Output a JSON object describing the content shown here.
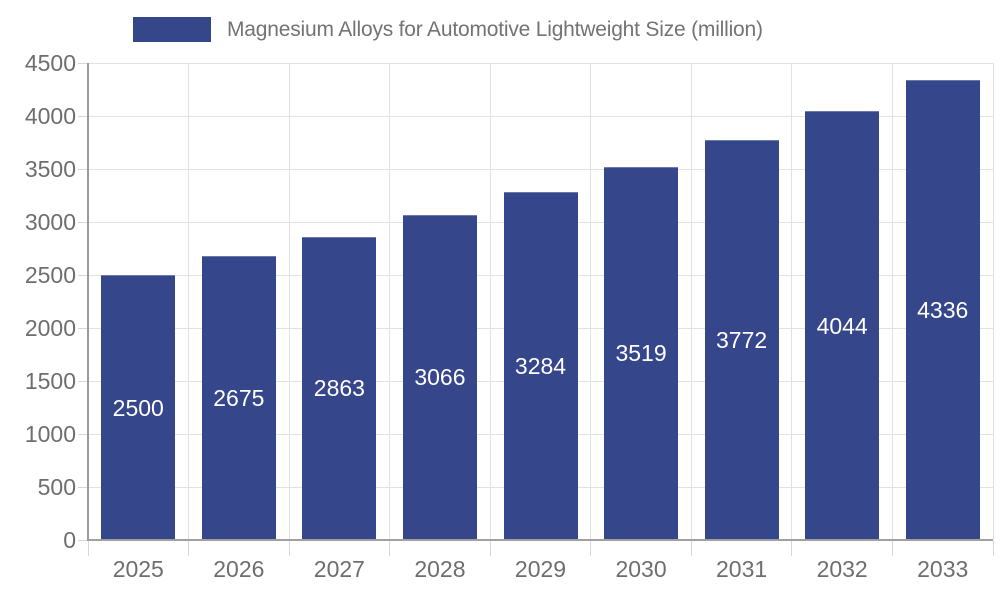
{
  "chart_data": {
    "type": "bar",
    "title": "",
    "legend": "Magnesium Alloys for Automotive Lightweight Size (million)",
    "legend_position": "top-center",
    "categories": [
      "2025",
      "2026",
      "2027",
      "2028",
      "2029",
      "2030",
      "2031",
      "2032",
      "2033"
    ],
    "values": [
      2500,
      2675,
      2863,
      3066,
      3284,
      3519,
      3772,
      4044,
      4336
    ],
    "xlabel": "",
    "ylabel": "",
    "ylim": [
      0,
      4500
    ],
    "yticks": [
      0,
      500,
      1000,
      1500,
      2000,
      2500,
      3000,
      3500,
      4000,
      4500
    ],
    "grid": true,
    "bar_color": "#36468B",
    "value_label_color": "#FFFFFF"
  },
  "colors": {
    "background": "#FFFFFF",
    "bar": "#36468B",
    "gridline": "#E2E2E2",
    "tick": "#D6D6D6",
    "axis_y": "#9B9B9B",
    "axis_x": "#A0A0A0",
    "tick_label": "#6E6E6E",
    "legend_text": "#737373",
    "value_label": "#FFFFFF"
  }
}
